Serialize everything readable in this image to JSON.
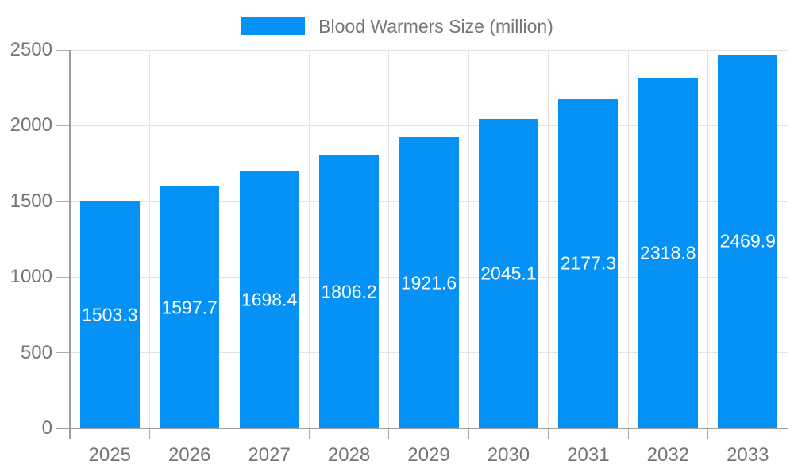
{
  "chart_data": {
    "type": "bar",
    "title": "",
    "legend_label": "Blood Warmers Size (million)",
    "legend_position": "top-center",
    "categories": [
      "2025",
      "2026",
      "2027",
      "2028",
      "2029",
      "2030",
      "2031",
      "2032",
      "2033"
    ],
    "values": [
      1503.3,
      1597.7,
      1698.4,
      1806.2,
      1921.6,
      2045.1,
      2177.3,
      2318.8,
      2469.9
    ],
    "value_labels": [
      "1503.3",
      "1597.7",
      "1698.4",
      "1806.2",
      "1921.6",
      "2045.1",
      "2177.3",
      "2318.8",
      "2469.9"
    ],
    "xlabel": "",
    "ylabel": "",
    "ylim": [
      0,
      2500
    ],
    "yticks": [
      0,
      500,
      1000,
      1500,
      2000,
      2500
    ],
    "ytick_labels": [
      "0",
      "500",
      "1000",
      "1500",
      "2000",
      "2500"
    ],
    "grid": true,
    "colors": {
      "bar": "#0591f5",
      "value_label": "#ffffff",
      "axis_text": "#757575",
      "axis_line": "#9e9e9e",
      "tick_line": "#ababab",
      "gridline": "#e2e2e2",
      "background": "#ffffff"
    }
  }
}
